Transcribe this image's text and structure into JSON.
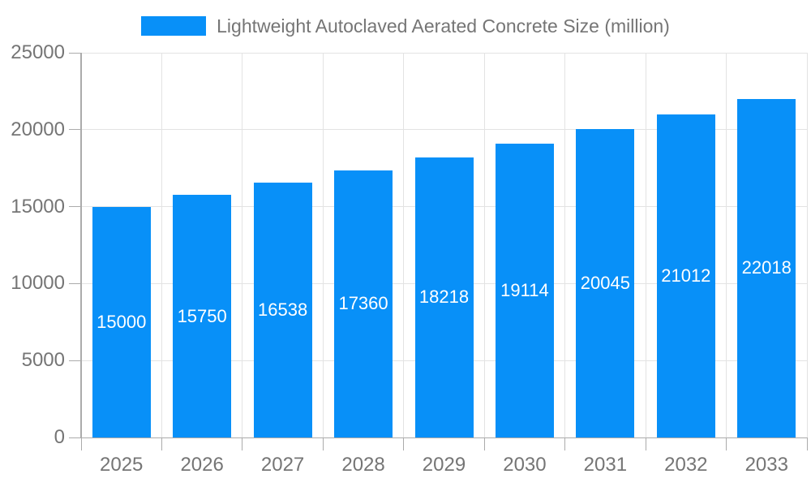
{
  "chart_data": {
    "type": "bar",
    "title": "Lightweight Autoclaved Aerated Concrete Size (million)",
    "legend_entries": [
      "Lightweight Autoclaved Aerated Concrete Size (million)"
    ],
    "legend_position": "top-center",
    "categories": [
      "2025",
      "2026",
      "2027",
      "2028",
      "2029",
      "2030",
      "2031",
      "2032",
      "2033"
    ],
    "values": [
      15000,
      15750,
      16538,
      17360,
      18218,
      19114,
      20045,
      21012,
      22018
    ],
    "bar_value_labels": [
      "15000",
      "15750",
      "16538",
      "17360",
      "18218",
      "19114",
      "20045",
      "21012",
      "22018"
    ],
    "xlabel": "",
    "ylabel": "",
    "ylim": [
      0,
      25000
    ],
    "yticks": [
      0,
      5000,
      10000,
      15000,
      20000,
      25000
    ],
    "grid": true
  },
  "colors": {
    "bar": "#0890F8",
    "grid": "#e3e3e3",
    "axis": "#ababab",
    "tick_text": "#757575",
    "legend_text": "#757575",
    "bar_label": "#ffffff",
    "background": "#ffffff"
  }
}
